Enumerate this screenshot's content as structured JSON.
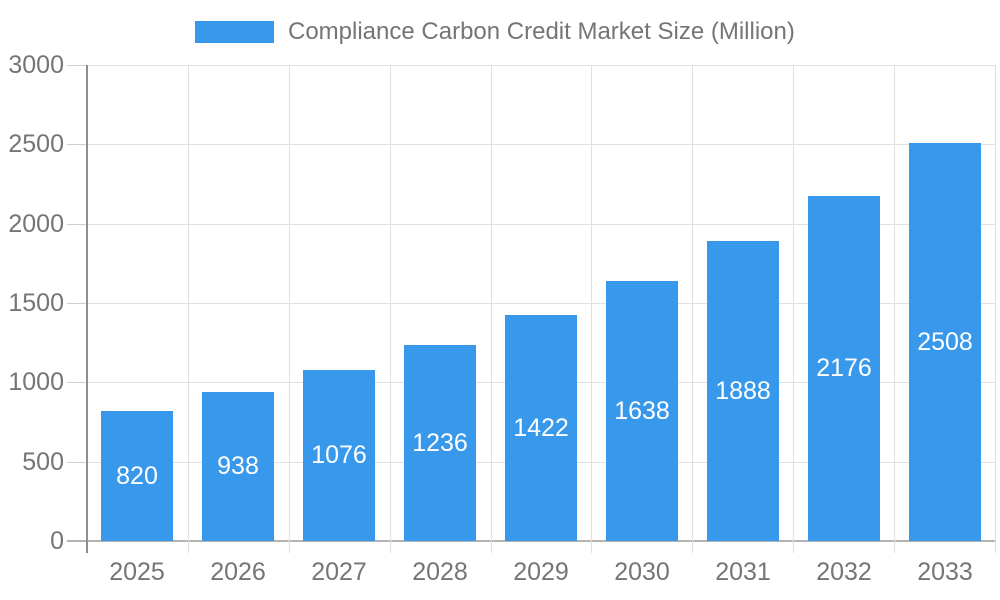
{
  "chart_data": {
    "type": "bar",
    "title": "Compliance Carbon Credit Market Size (Million)",
    "legend_position": "top-center",
    "categories": [
      "2025",
      "2026",
      "2027",
      "2028",
      "2029",
      "2030",
      "2031",
      "2032",
      "2033"
    ],
    "series": [
      {
        "name": "Compliance Carbon Credit Market Size (Million)",
        "values": [
          820,
          938,
          1076,
          1236,
          1422,
          1638,
          1888,
          2176,
          2508
        ]
      }
    ],
    "xlabel": "",
    "ylabel": "",
    "ylim": [
      0,
      3000
    ],
    "yticks": [
      0,
      500,
      1000,
      1500,
      2000,
      2500,
      3000
    ],
    "grid": true,
    "value_labels": "inside-middle",
    "colors": {
      "bar": "#3899EC",
      "value_label": "#FFFFFF",
      "axis_text": "#757575",
      "gridline": "#E0E0E0",
      "y_axis_line": "#8F8F8F",
      "x_axis_line": "#B3B3B3"
    }
  }
}
